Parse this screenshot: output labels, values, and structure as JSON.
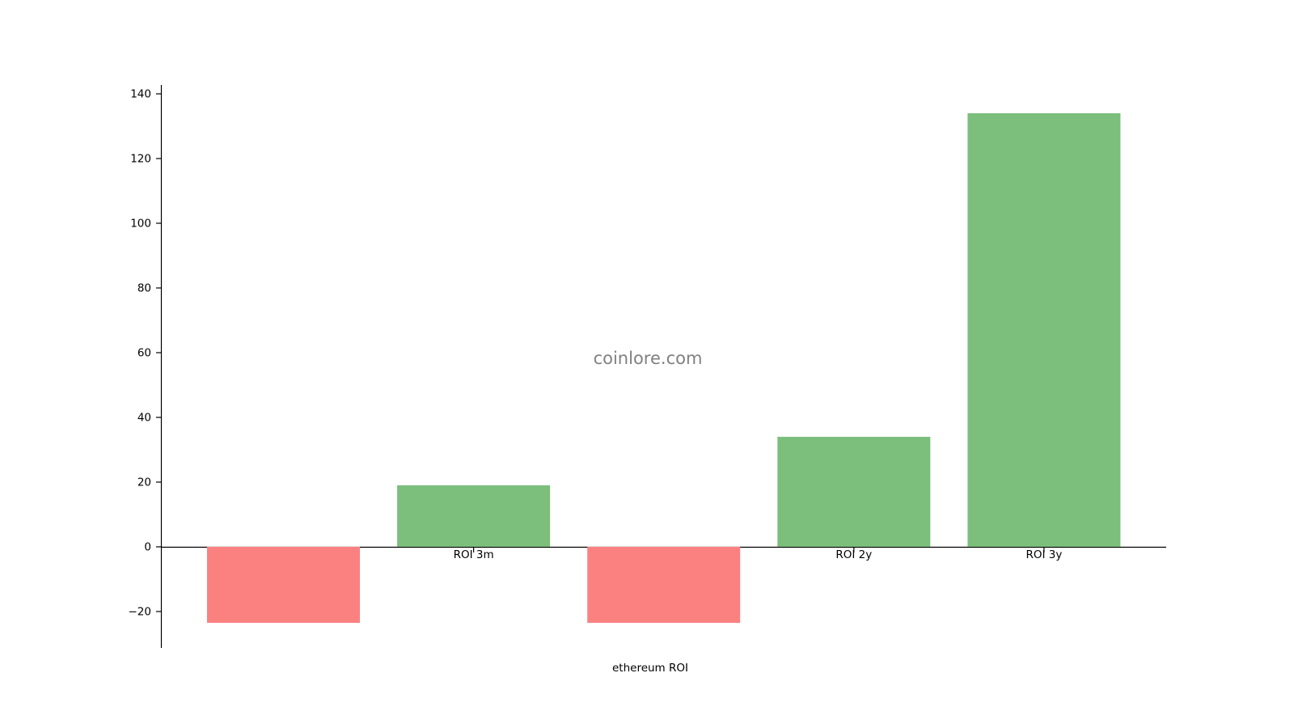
{
  "chart_data": {
    "type": "bar",
    "title": "",
    "xlabel": "ethereum ROI",
    "ylabel": "",
    "categories": [
      "",
      "ROI 3m",
      "",
      "ROI 2y",
      "ROI 3y"
    ],
    "values": [
      -23.5,
      19,
      -23.5,
      34,
      134
    ],
    "y_ticks": [
      -20,
      0,
      20,
      40,
      60,
      80,
      100,
      120,
      140
    ],
    "ylim": [
      -31.4,
      141.9
    ],
    "grid": false,
    "legend": null,
    "positive_color": "#7CBE7C",
    "negative_color": "#FB8181",
    "axis_color": "#000000",
    "tick_label_color": "#000000",
    "watermark": "coinlore.com",
    "watermark_color": "#808080",
    "background_color": "#ffffff"
  }
}
